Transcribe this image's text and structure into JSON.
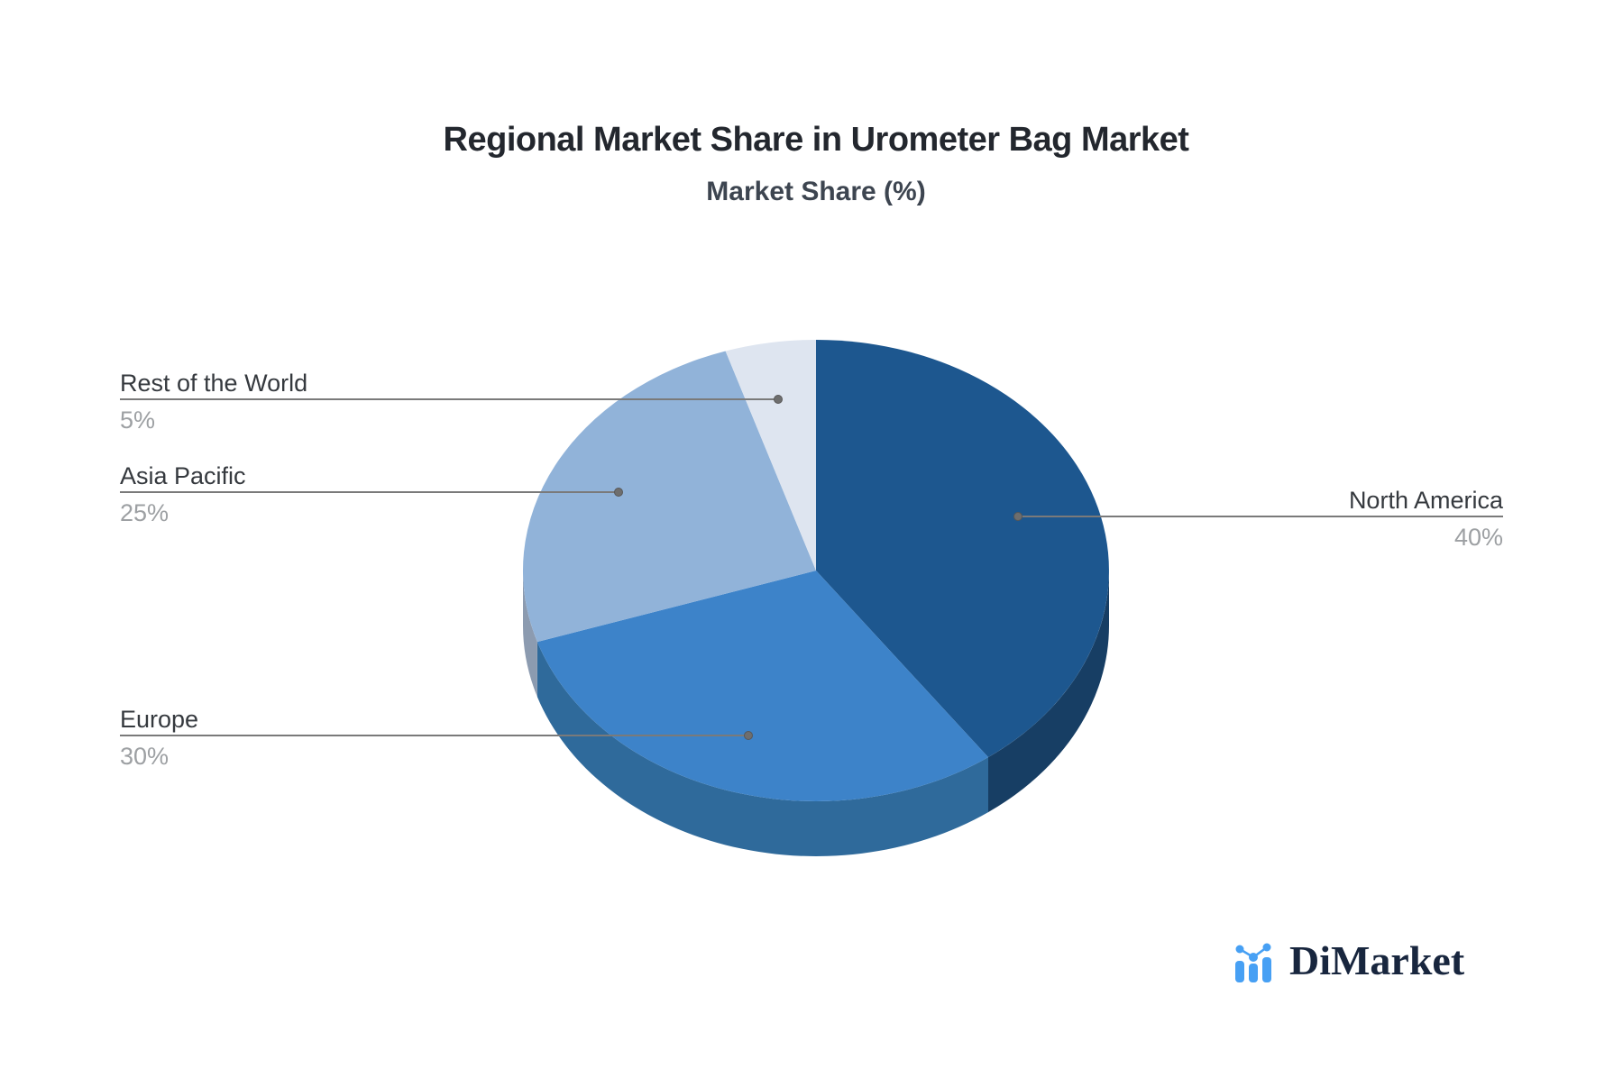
{
  "chart_data": {
    "type": "pie",
    "style": "3d",
    "title": "Regional Market Share in Urometer Bag Market",
    "subtitle": "Market Share (%)",
    "unit": "%",
    "direction": "clockwise",
    "start_angle_deg": 0,
    "legend_position": "none",
    "background": "#ffffff",
    "slices": [
      {
        "label": "North America",
        "value": 40,
        "pct_label": "40%",
        "color": "#1d578f",
        "side_color": "#173e64"
      },
      {
        "label": "Europe",
        "value": 30,
        "pct_label": "30%",
        "color": "#3d83c9",
        "side_color": "#2f6a9b"
      },
      {
        "label": "Asia Pacific",
        "value": 25,
        "pct_label": "25%",
        "color": "#91b3d9",
        "side_color": "#8c9bb0"
      },
      {
        "label": "Rest of the World",
        "value": 5,
        "pct_label": "5%",
        "color": "#dee5f0",
        "side_color": "#c9d3e2"
      }
    ],
    "callout_line_color": "#7a7a7a",
    "label_color": "#35393e",
    "value_color": "#9da0a3"
  },
  "branding": {
    "logo_text": "DiMarket",
    "logo_icon": "bar-line-chart-icon",
    "logo_text_color": "#18263e",
    "icon_color": "#47a0f4"
  }
}
